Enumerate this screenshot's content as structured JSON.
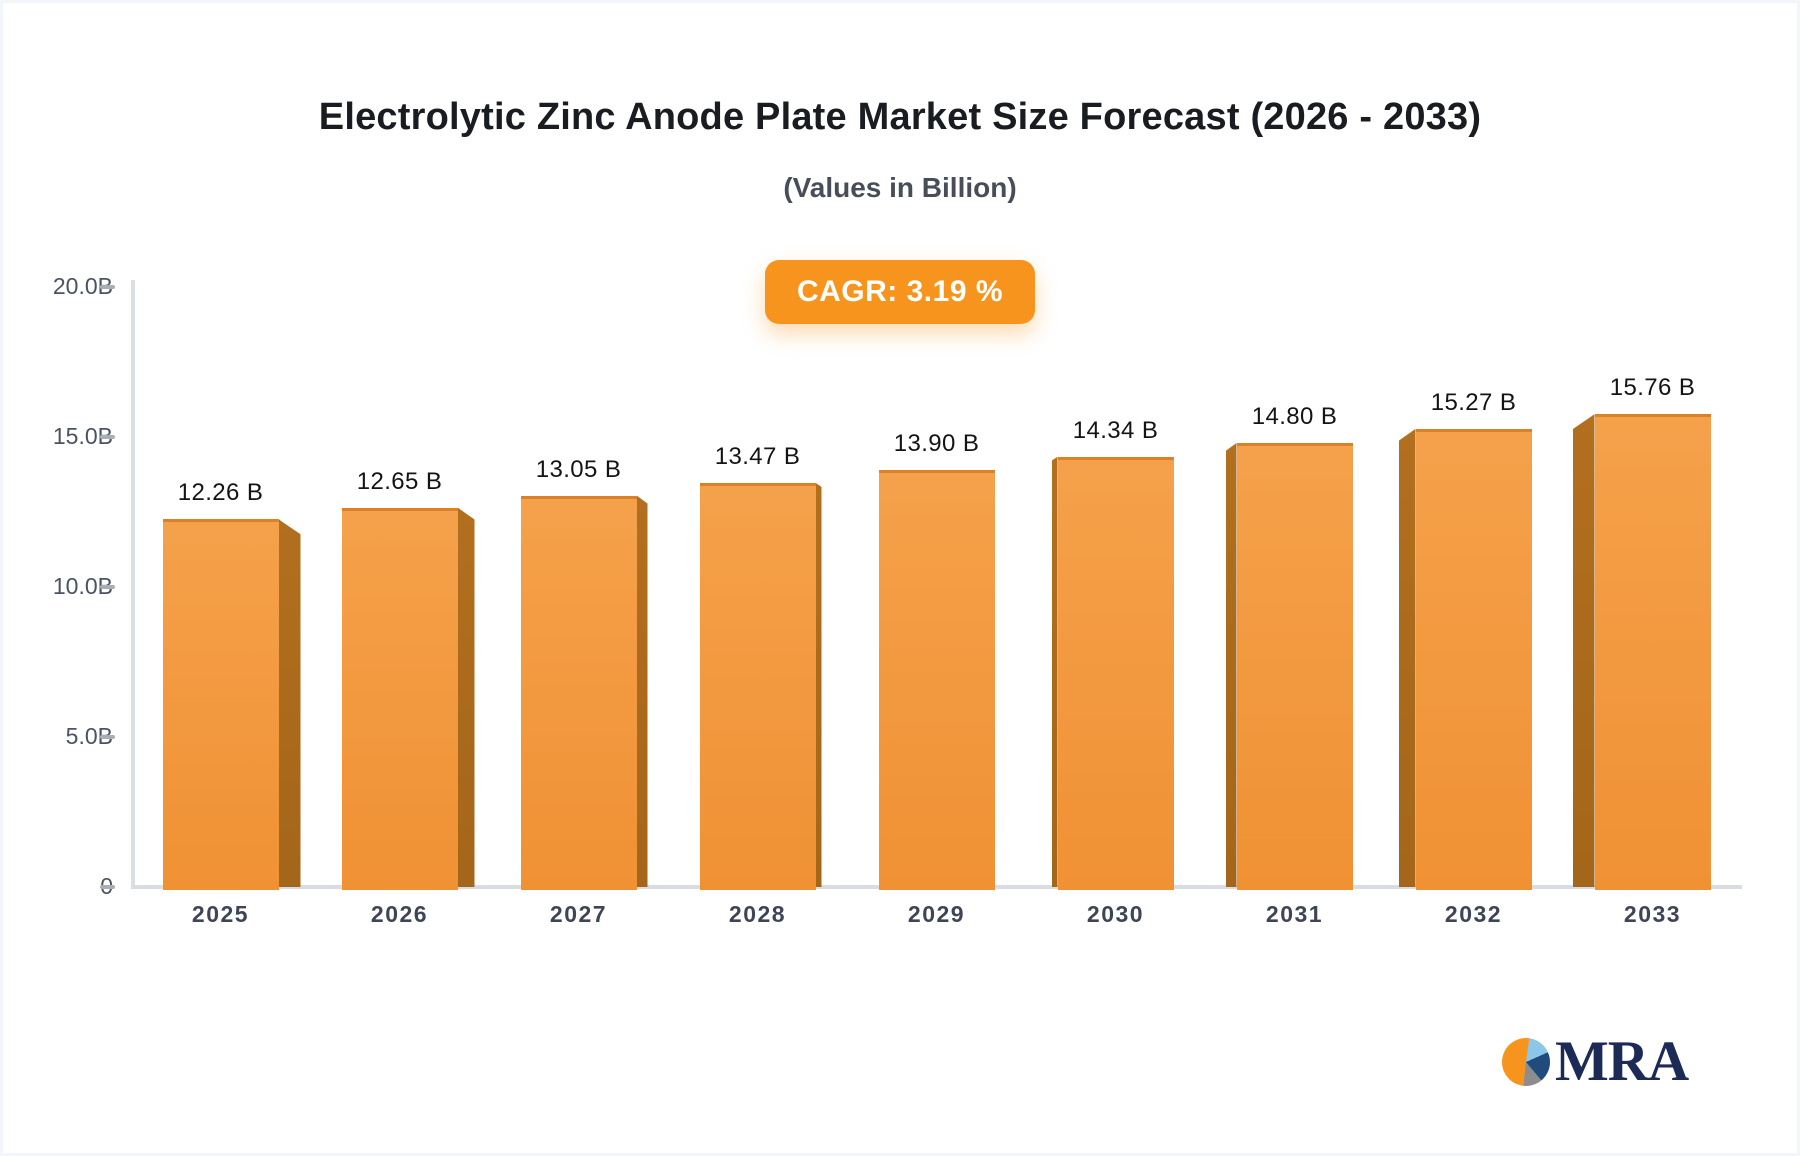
{
  "header": {
    "title": "Electrolytic Zinc Anode Plate Market Size Forecast (2026 - 2033)",
    "subtitle": "(Values in Billion)",
    "cagr_label": "CAGR: 3.19 %"
  },
  "chart_data": {
    "type": "bar",
    "title": "Electrolytic Zinc Anode Plate Market Size Forecast (2026 - 2033)",
    "subtitle": "(Values in Billion)",
    "categories": [
      "2025",
      "2026",
      "2027",
      "2028",
      "2029",
      "2030",
      "2031",
      "2032",
      "2033"
    ],
    "values": [
      12.26,
      12.65,
      13.05,
      13.47,
      13.9,
      14.34,
      14.8,
      15.27,
      15.76
    ],
    "value_labels": [
      "12.26 B",
      "12.65 B",
      "13.05 B",
      "13.47 B",
      "13.90 B",
      "14.34 B",
      "14.80 B",
      "15.27 B",
      "15.76 B"
    ],
    "y_ticks": [
      {
        "label": "20.0B",
        "value": 20
      },
      {
        "label": "15.0B",
        "value": 15
      },
      {
        "label": "10.0B",
        "value": 10
      },
      {
        "label": "5.0B",
        "value": 5
      },
      {
        "label": "0",
        "value": 0
      }
    ],
    "ylim": [
      0,
      20
    ],
    "xlabel": "",
    "ylabel": "",
    "grid": "off",
    "legend": "none",
    "cagr": "3.19 %"
  },
  "colors": {
    "accent_orange": "#F7941E",
    "bar_face_top": "#F5A14B",
    "bar_face_bottom": "#F09134",
    "bar_top_edge": "#DD8126",
    "bar_side": "#B26F1E",
    "bar_side_dark": "#A4661A",
    "axis_line": "#dbdee3",
    "tick_text": "#4a5361",
    "year_text": "#3e4656",
    "value_text": "#141414",
    "logo_navy": "#1b2b55",
    "logo_blue": "#8cc7e9",
    "logo_dark_blue": "#1f4c7c",
    "logo_gray": "#8d8d8f"
  },
  "logo": {
    "text": "MRA",
    "icon": "pie-chart-icon"
  }
}
